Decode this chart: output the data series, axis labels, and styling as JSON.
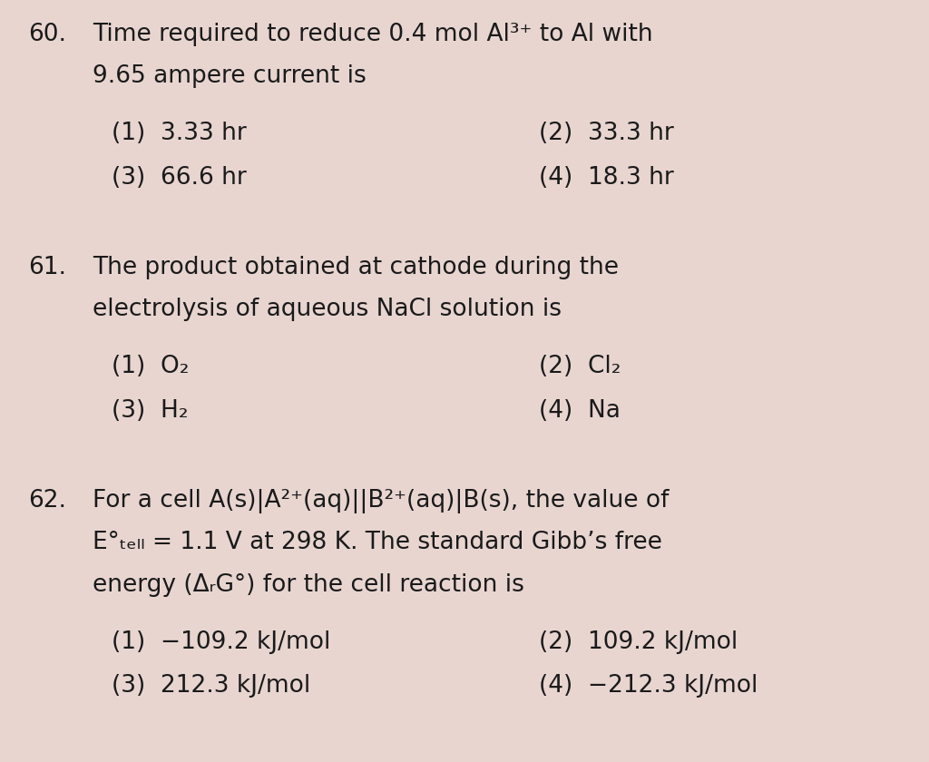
{
  "background_color": "#e8d5d0",
  "text_color": "#1a1a1a",
  "font_size_main": 19,
  "font_size_options": 19,
  "figsize": [
    10.24,
    8.4
  ],
  "dpi": 100,
  "questions": [
    {
      "number": "60.",
      "text_lines": [
        "Time required to reduce 0.4 mol Al³⁺ to Al with",
        "9.65 ampere current is"
      ],
      "options": [
        [
          "(1)  3.33 hr",
          "(2)  33.3 hr"
        ],
        [
          "(3)  66.6 hr",
          "(4)  18.3 hr"
        ]
      ]
    },
    {
      "number": "61.",
      "text_lines": [
        "The product obtained at cathode during the",
        "electrolysis of aqueous NaCl solution is"
      ],
      "options": [
        [
          "(1)  O₂",
          "(2)  Cl₂"
        ],
        [
          "(3)  H₂",
          "(4)  Na"
        ]
      ]
    },
    {
      "number": "62.",
      "text_lines": [
        "For a cell A(s)|A²⁺(aq)||B²⁺(aq)|B(s), the value of",
        "E°ₜₑₗₗ = 1.1 V at 298 K. The standard Gibb’s free",
        "energy (ΔᵣG°) for the cell reaction is"
      ],
      "options": [
        [
          "(1)  −109.2 kJ/mol",
          "(2)  109.2 kJ/mol"
        ],
        [
          "(3)  212.3 kJ/mol",
          "(4)  −212.3 kJ/mol"
        ]
      ]
    }
  ]
}
